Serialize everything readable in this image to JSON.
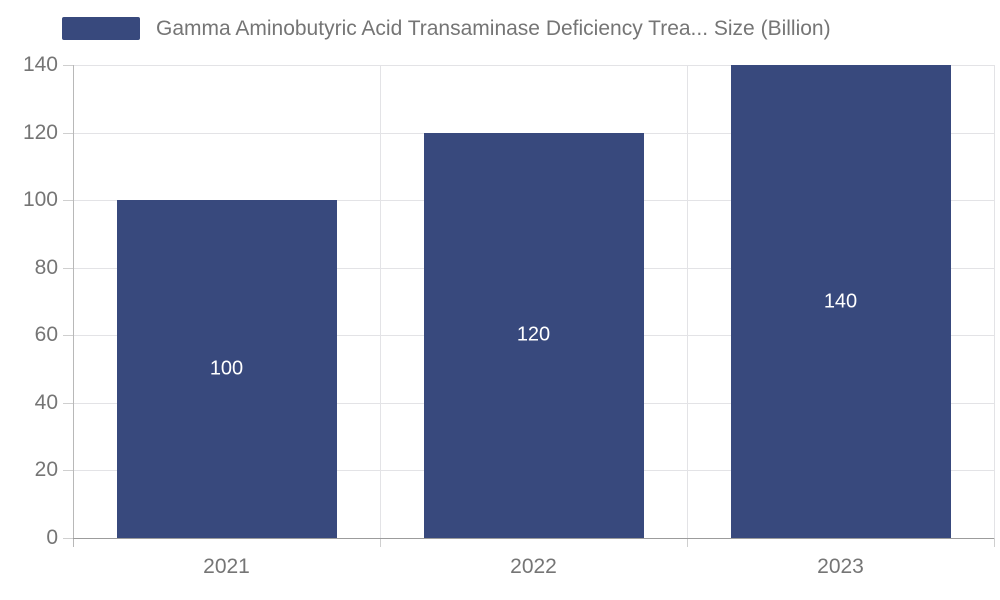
{
  "chart_data": {
    "type": "bar",
    "title": "",
    "series_label": "Gamma Aminobutyric Acid Transaminase Deficiency Trea... Size (Billion)",
    "categories": [
      "2021",
      "2022",
      "2023"
    ],
    "values": [
      100,
      120,
      140
    ],
    "value_labels": [
      "100",
      "120",
      "140"
    ],
    "xlabel": "",
    "ylabel": "",
    "ylim": [
      0,
      140
    ],
    "yticks": [
      0,
      20,
      40,
      60,
      80,
      100,
      120,
      140
    ],
    "grid": true,
    "legend_position": "top-left",
    "colors": {
      "bar": "#38497D",
      "legend_text": "#757575",
      "axis_text": "#757575",
      "gridline": "#E3E3E6",
      "x_axis_line": "#9C9C9C",
      "y_axis_line": "#B8B8B8",
      "tick": "#CFCFCF",
      "value_label": "#FFFFFF",
      "background": "#FFFFFF"
    }
  }
}
